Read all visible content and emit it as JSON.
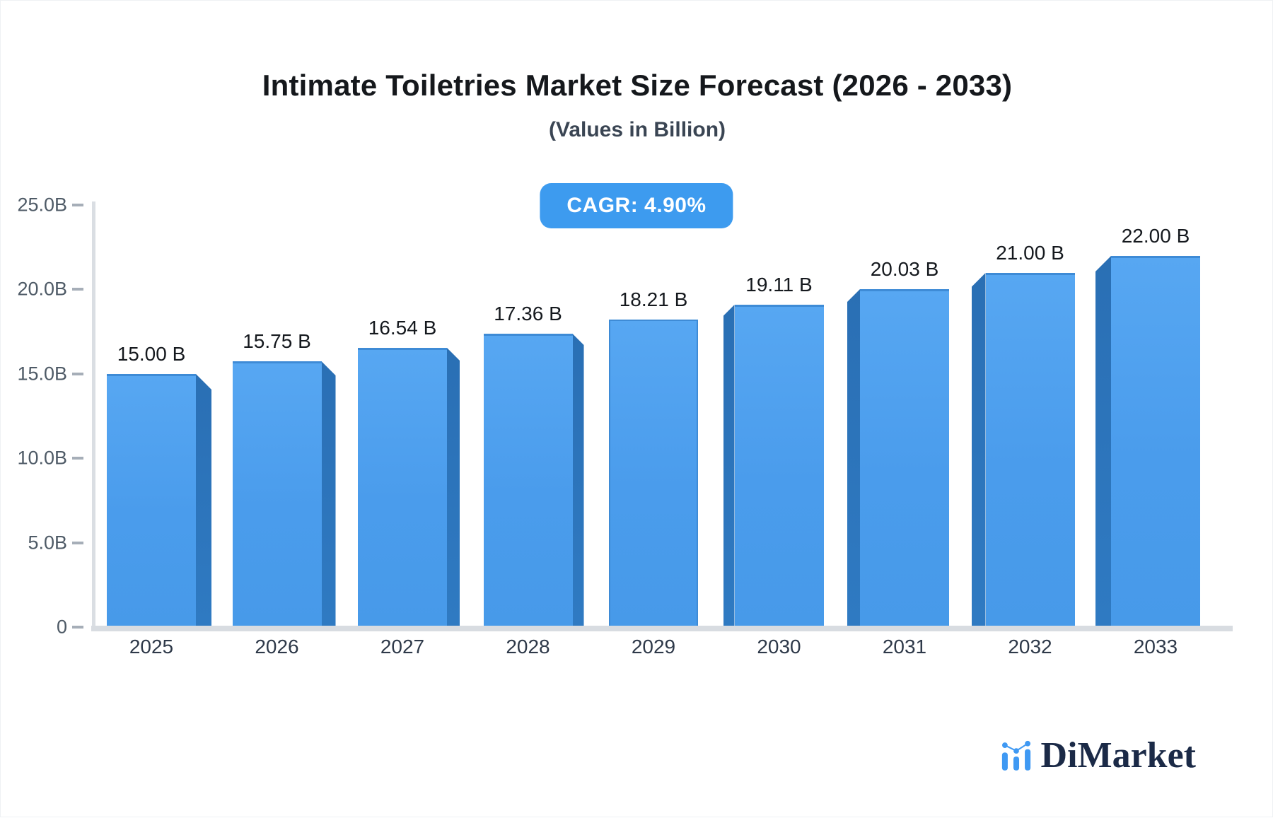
{
  "title": "Intimate Toiletries Market Size Forecast (2026 - 2033)",
  "subtitle": "(Values in Billion)",
  "badge": {
    "label": "CAGR: 4.90%",
    "bg_color": "#3d9bef",
    "text_color": "#ffffff"
  },
  "brand": {
    "name": "DiMarket",
    "icon": "bar-chart-logo-icon",
    "text_color": "#1b2a47",
    "icon_color": "#3f99f3"
  },
  "colors": {
    "bar_face": "#4d9fee",
    "bar_side": "#2c74bb",
    "axis": "#d8dce1",
    "tick": "#a6aeb8",
    "y_label": "#4e5a66",
    "x_label": "#2e3949",
    "value_label": "#15191e"
  },
  "chart_data": {
    "type": "bar",
    "title": "Intimate Toiletries Market Size Forecast (2026 - 2033)",
    "subtitle": "(Values in Billion)",
    "annotation": "CAGR: 4.90%",
    "categories": [
      "2025",
      "2026",
      "2027",
      "2028",
      "2029",
      "2030",
      "2031",
      "2032",
      "2033"
    ],
    "values": [
      15.0,
      15.75,
      16.54,
      17.36,
      18.21,
      19.11,
      20.03,
      21.0,
      22.0
    ],
    "value_labels": [
      "15.00 B",
      "15.75 B",
      "16.54 B",
      "17.36 B",
      "18.21 B",
      "19.11 B",
      "20.03 B",
      "21.00 B",
      "22.00 B"
    ],
    "xlabel": "",
    "ylabel": "",
    "ylim": [
      0,
      25
    ],
    "yticks": [
      0,
      5,
      10,
      15,
      20,
      25
    ],
    "ytick_labels": [
      "0",
      "5.0B",
      "10.0B",
      "15.0B",
      "20.0B",
      "25.0B"
    ],
    "grid": false,
    "legend": false,
    "style": "3d-extruded-bars-center-perspective"
  }
}
